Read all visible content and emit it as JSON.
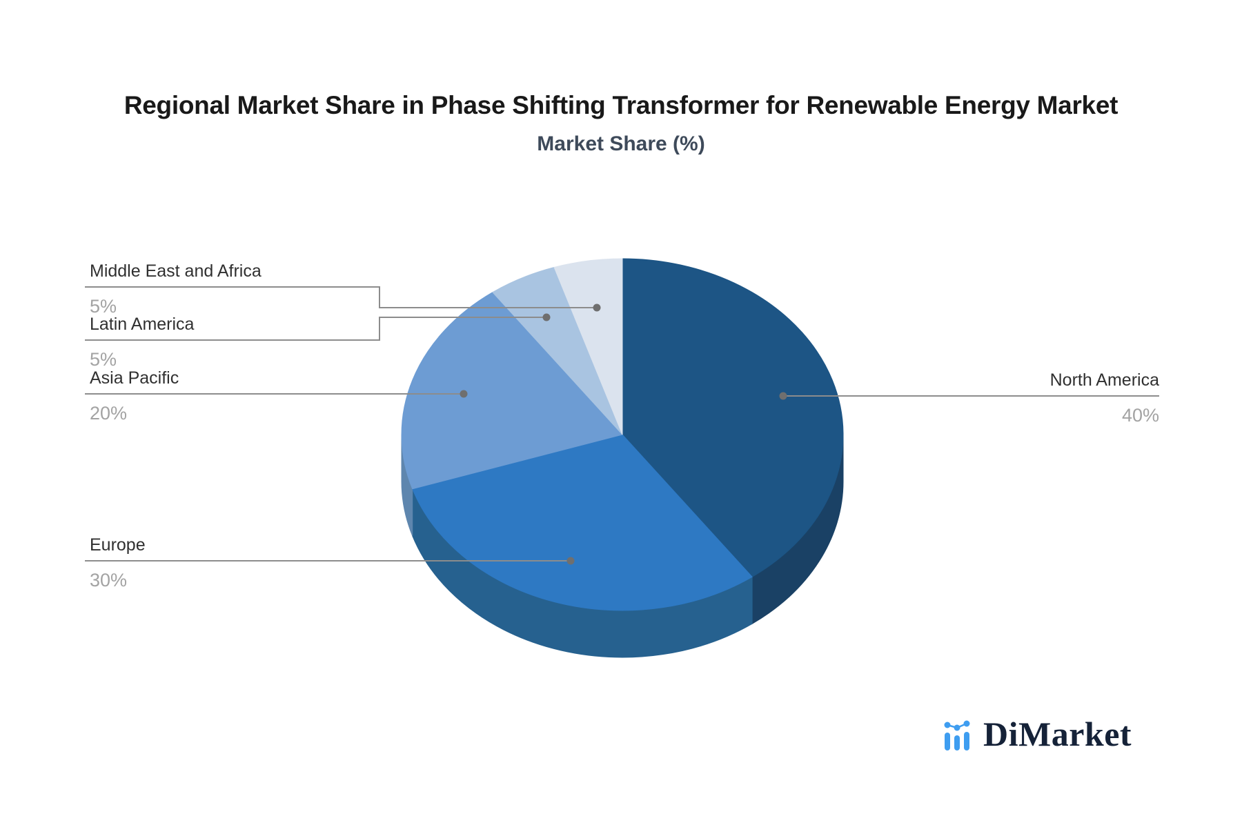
{
  "title": "Regional Market Share in Phase Shifting Transformer for Renewable Energy Market",
  "subtitle": "Market Share (%)",
  "logo": {
    "text": "DiMarket",
    "icon": "bar-line-chart-icon",
    "icon_color": "#3e9df0",
    "text_color": "#152238"
  },
  "chart_data": {
    "type": "pie",
    "style": "3d",
    "title": "Regional Market Share in Phase Shifting Transformer for Renewable Energy Market",
    "subtitle": "Market Share (%)",
    "unit": "%",
    "start_angle": "12-o-clock",
    "direction": "clockwise",
    "legend_position": "callout-labels",
    "background": "#ffffff",
    "callout_line_color": "#8c8c8c",
    "callout_dot_color": "#6f6f6f",
    "label_text_color": "#303030",
    "value_text_color": "#a3a3a3",
    "slices": [
      {
        "label": "North America",
        "value": 40,
        "display": "40%",
        "color": "#1d5585",
        "side_color": "#1a4165"
      },
      {
        "label": "Europe",
        "value": 30,
        "display": "30%",
        "color": "#2e79c3",
        "side_color": "#26618f"
      },
      {
        "label": "Asia Pacific",
        "value": 20,
        "display": "20%",
        "color": "#6d9cd3",
        "side_color": "#5e86ae"
      },
      {
        "label": "Latin America",
        "value": 5,
        "display": "5%",
        "color": "#a9c4e1",
        "side_color": "#8fb0d2"
      },
      {
        "label": "Middle East and Africa",
        "value": 5,
        "display": "5%",
        "color": "#dbe3ee",
        "side_color": "#c2cede"
      }
    ]
  }
}
